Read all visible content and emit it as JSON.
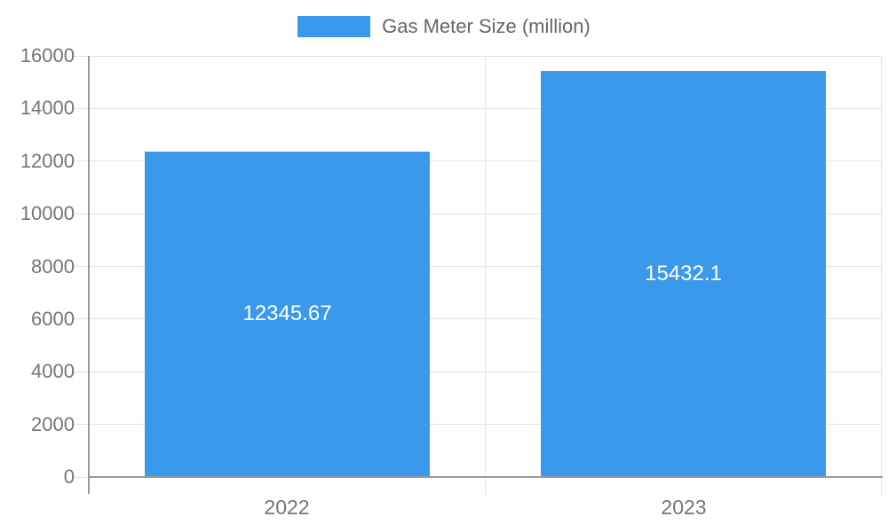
{
  "chart_data": {
    "type": "bar",
    "title": "",
    "xlabel": "",
    "ylabel": "",
    "legend_label": "Gas Meter Size (million)",
    "legend_position": "top",
    "categories": [
      "2022",
      "2023"
    ],
    "series": [
      {
        "name": "Gas Meter Size (million)",
        "values": [
          12345.67,
          15432.1
        ],
        "value_labels": [
          "12345.67",
          "15432.1"
        ]
      }
    ],
    "ylim": [
      0,
      16000
    ],
    "yticks": [
      0,
      2000,
      4000,
      6000,
      8000,
      10000,
      12000,
      14000,
      16000
    ],
    "ytick_labels": [
      "0",
      "2000",
      "4000",
      "6000",
      "8000",
      "10000",
      "12000",
      "14000",
      "16000"
    ],
    "grid": true
  },
  "colors": {
    "bar": "#3B99EC",
    "bar_label_text": "#FFFFFF",
    "gridline": "#E3E3E3",
    "axis_line": "#9A9A9A",
    "tick_text": "#757575",
    "legend_text": "#666666"
  }
}
